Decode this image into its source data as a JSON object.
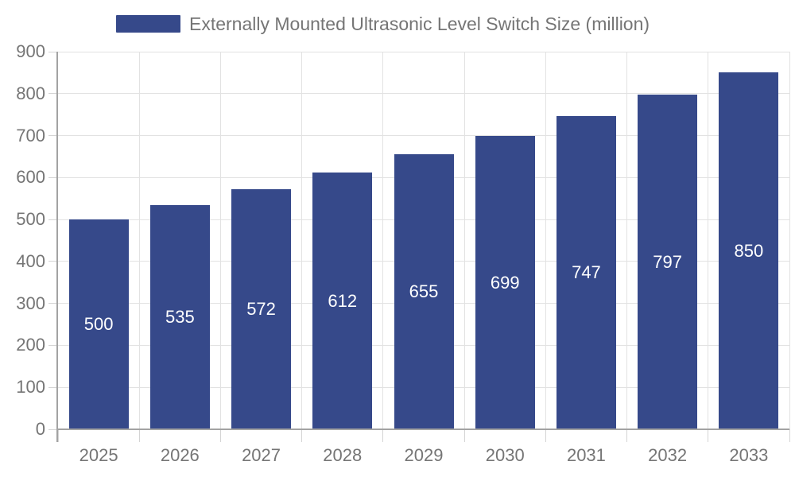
{
  "legend": {
    "label": "Externally Mounted Ultrasonic Level Switch Size (million)"
  },
  "chart_data": {
    "type": "bar",
    "title": "",
    "categories": [
      "2025",
      "2026",
      "2027",
      "2028",
      "2029",
      "2030",
      "2031",
      "2032",
      "2033"
    ],
    "series": [
      {
        "name": "Externally Mounted Ultrasonic Level Switch Size (million)",
        "values": [
          500,
          535,
          572,
          612,
          655,
          699,
          747,
          797,
          850
        ]
      }
    ],
    "data_labels": [
      "500",
      "535",
      "572",
      "612",
      "655",
      "699",
      "747",
      "797",
      "850"
    ],
    "data_label_position": "inside-center",
    "xlabel": "",
    "ylabel": "",
    "ylim": [
      0,
      900
    ],
    "ytick_interval": 100,
    "ytick_labels": [
      "0",
      "100",
      "200",
      "300",
      "400",
      "500",
      "600",
      "700",
      "800",
      "900"
    ],
    "grid": true,
    "legend_position": "top",
    "colors": {
      "bar_fill": "#36498A",
      "data_label_text": "#ffffff",
      "axis_text": "#757575",
      "axis_line": "#a3a3a3",
      "gridline": "#e2e2e2",
      "tick_mark": "#d4d4d4",
      "background": "#ffffff"
    }
  }
}
